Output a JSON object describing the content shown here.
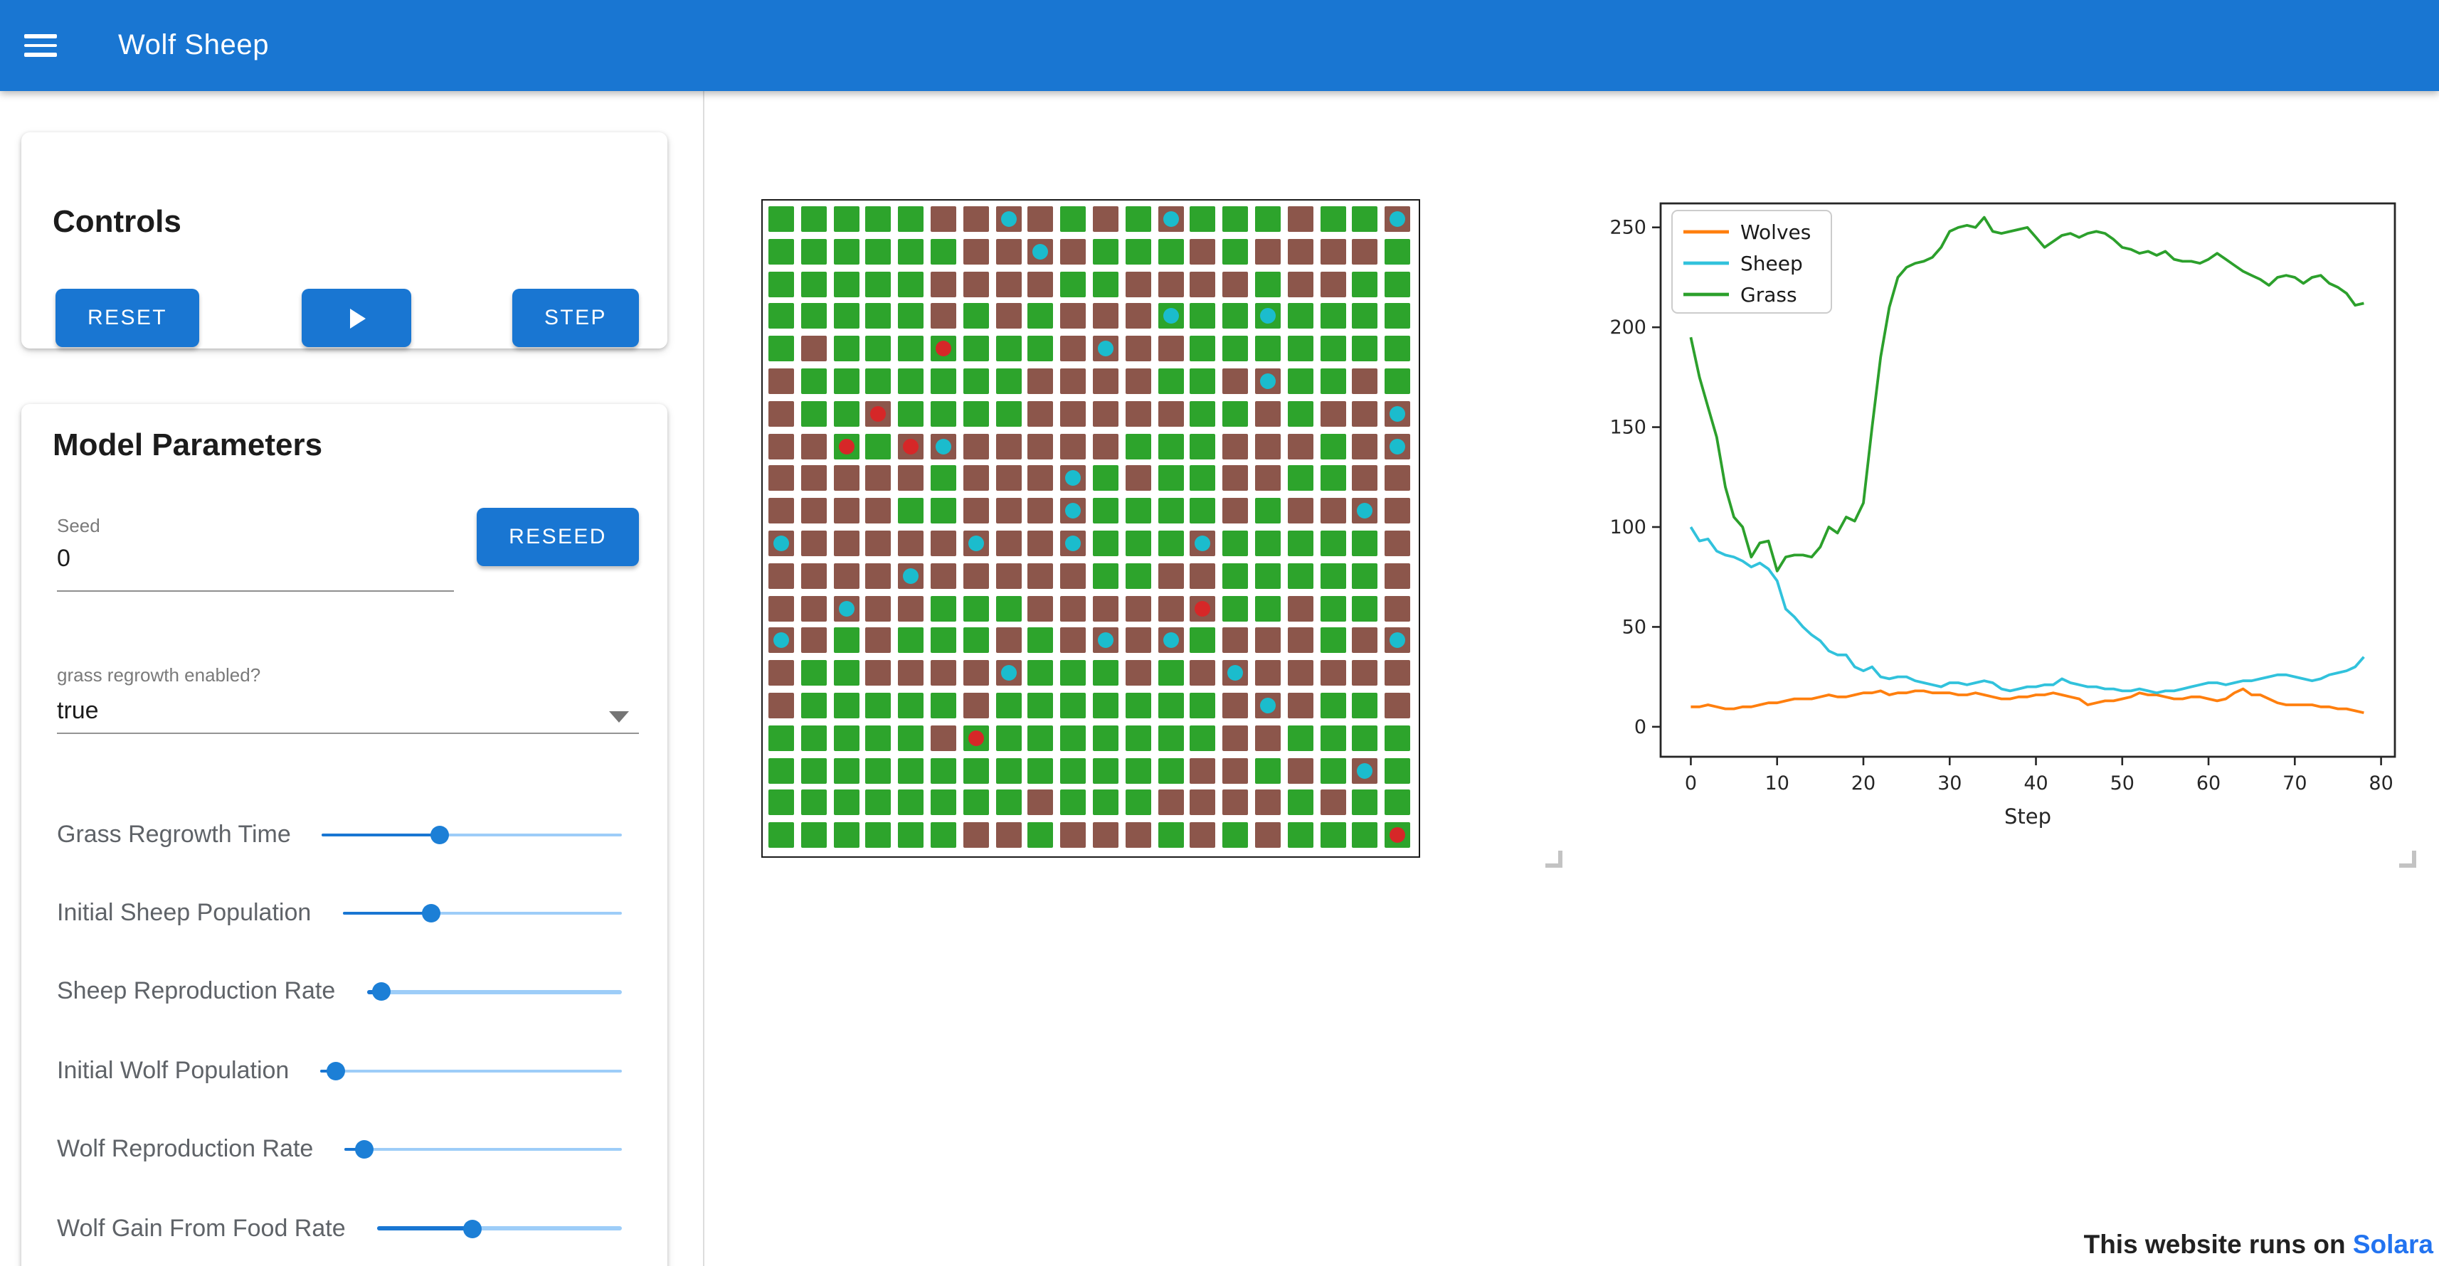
{
  "app_bar": {
    "title": "Wolf Sheep"
  },
  "controls": {
    "title": "Controls",
    "reset_label": "RESET",
    "play_icon": "play-triangle",
    "step_label": "STEP"
  },
  "parameters": {
    "title": "Model Parameters",
    "seed": {
      "label": "Seed",
      "value": "0",
      "button_label": "RESEED"
    },
    "dropdown": {
      "label": "grass regrowth enabled?",
      "value": "true",
      "icon": "chevron-down-icon"
    },
    "sliders": [
      {
        "label": "Grass Regrowth Time",
        "fraction": 0.39
      },
      {
        "label": "Initial Sheep Population",
        "fraction": 0.32
      },
      {
        "label": "Sheep Reproduction Rate",
        "fraction": 0.06
      },
      {
        "label": "Initial Wolf Population",
        "fraction": 0.05
      },
      {
        "label": "Wolf Reproduction Rate",
        "fraction": 0.07
      },
      {
        "label": "Wolf Gain From Food Rate",
        "fraction": 0.39
      }
    ],
    "slider_colors": {
      "fill": "#1976d2",
      "track": "#9dcdf8",
      "thumb": "#1c7fd6"
    }
  },
  "grid": {
    "size": 20,
    "colors": {
      "grass": "#2da42c",
      "soil": "#8c564b",
      "sheep": "#1bbccd",
      "wolf": "#d62728"
    },
    "cell_legend": "G=grass, B=soil, s=sheep-on-grass, S=sheep-on-soil, w=wolf-on-grass, W=wolf-on-soil",
    "rows": [
      "GGGGGBBSBGBGSGGGBGGS",
      "GGGGGGBBSBGGGBGBBBBG",
      "GGGGGBBBBGGBBBBGBBGG",
      "GGGGGBGBGBBBsGGsGGGG",
      "GBGGGwGGGBSBBGGGGGGG",
      "BGGGGGGGBBBBGGBSGGBG",
      "BGGWGGGGBBBBBGGBGBBS",
      "BBwGWSBBBBBGGGBBBGBS",
      "BBBBBGBBBSGBGGBBGGBB",
      "BBBBGGBBBSGGGGBGBBSB",
      "SBBBBBSBBSGGGSGGGGGB",
      "BBBBSBBBBBGGBBGGGGGB",
      "BBSBBGGGBBBBBWGGBGGB",
      "SBGBGGGBGBSBSGBBBGBS",
      "BGGBBBBSGGGBGBSBBBBB",
      "BGGGGGBGGGGGGGBSBGGB",
      "GGGGGBwGGGGGGGBBGGGG",
      "GGGGGGGGGGGGGBBGBGSG",
      "GGGGGGGGBGGGBBBBGBGG",
      "GGGGGGBBGBBBGBGBGGGw"
    ]
  },
  "chart_data": {
    "type": "line",
    "title": "",
    "xlabel": "Step",
    "ylabel": "",
    "x_start": 0,
    "x_step": 1,
    "xlim": [
      -3.5,
      81.6
    ],
    "ylim": [
      -15,
      262
    ],
    "x_ticks": [
      0,
      10,
      20,
      30,
      40,
      50,
      60,
      70,
      80
    ],
    "y_ticks": [
      0,
      50,
      100,
      150,
      200,
      250
    ],
    "grid": false,
    "legend_position": "upper left",
    "series": [
      {
        "name": "Wolves",
        "color": "#ff7f0e",
        "values": [
          10,
          10,
          11,
          10,
          9,
          9,
          10,
          10,
          11,
          12,
          12,
          13,
          14,
          14,
          14,
          15,
          16,
          15,
          15,
          16,
          17,
          17,
          18,
          16,
          17,
          17,
          18,
          18,
          17,
          17,
          17,
          16,
          16,
          17,
          16,
          15,
          14,
          14,
          15,
          15,
          16,
          16,
          17,
          16,
          15,
          14,
          11,
          12,
          13,
          13,
          14,
          15,
          17,
          16,
          16,
          15,
          14,
          14,
          15,
          15,
          14,
          13,
          14,
          17,
          19,
          16,
          16,
          14,
          12,
          11,
          11,
          11,
          11,
          10,
          10,
          9,
          9,
          8,
          7
        ]
      },
      {
        "name": "Sheep",
        "color": "#31c2dc",
        "values": [
          100,
          93,
          94,
          88,
          86,
          85,
          83,
          80,
          82,
          79,
          73,
          59,
          55,
          50,
          46,
          43,
          38,
          36,
          36,
          30,
          28,
          30,
          25,
          24,
          25,
          25,
          23,
          22,
          21,
          20,
          22,
          22,
          21,
          22,
          23,
          22,
          19,
          18,
          19,
          20,
          20,
          21,
          21,
          24,
          22,
          21,
          20,
          20,
          19,
          19,
          18,
          18,
          19,
          18,
          17,
          18,
          18,
          19,
          20,
          21,
          22,
          22,
          21,
          22,
          23,
          23,
          24,
          25,
          26,
          26,
          25,
          24,
          23,
          24,
          26,
          27,
          28,
          30,
          35
        ]
      },
      {
        "name": "Grass",
        "color": "#2ca02c",
        "values": [
          195,
          175,
          160,
          145,
          120,
          105,
          100,
          85,
          92,
          93,
          78,
          85,
          86,
          86,
          85,
          90,
          100,
          97,
          105,
          103,
          112,
          150,
          185,
          210,
          225,
          230,
          232,
          233,
          235,
          240,
          248,
          250,
          251,
          250,
          255,
          248,
          247,
          248,
          249,
          250,
          245,
          240,
          243,
          246,
          247,
          245,
          247,
          248,
          247,
          244,
          240,
          239,
          237,
          238,
          236,
          238,
          234,
          233,
          233,
          232,
          234,
          237,
          234,
          231,
          228,
          226,
          224,
          221,
          225,
          226,
          225,
          222,
          225,
          226,
          222,
          220,
          217,
          211,
          212
        ]
      }
    ]
  },
  "footer": {
    "text": "This website runs on ",
    "link_label": "Solara",
    "link_color": "#2273f0"
  }
}
